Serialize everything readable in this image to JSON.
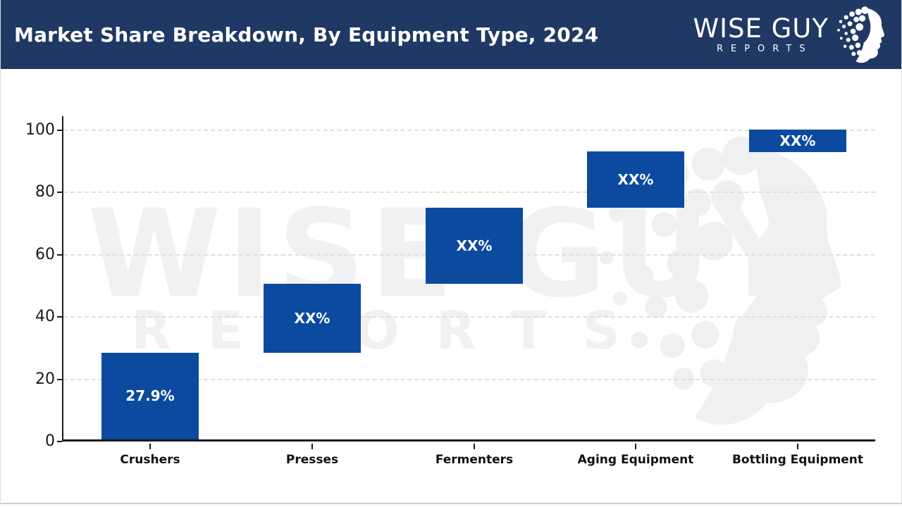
{
  "header": {
    "title": "Market Share Breakdown, By Equipment Type, 2024",
    "bg_color": "#203864",
    "logo": {
      "line1": "WISE GUY",
      "line2": "REPORTS"
    }
  },
  "watermark": {
    "line1": "WISE GUY",
    "line2": "REPORTS"
  },
  "chart_data": {
    "type": "bar",
    "subtype": "waterfall",
    "title": "Market Share Breakdown, By Equipment Type, 2024",
    "categories": [
      "Crushers",
      "Presses",
      "Fermenters",
      "Aging Equipment",
      "Bottling Equipment"
    ],
    "segments": [
      {
        "start": 0,
        "end": 27.9,
        "label": "27.9%"
      },
      {
        "start": 27.9,
        "end": 50.0,
        "label": "XX%"
      },
      {
        "start": 50.0,
        "end": 74.5,
        "label": "XX%"
      },
      {
        "start": 74.5,
        "end": 92.5,
        "label": "XX%"
      },
      {
        "start": 92.4,
        "end": 99.6,
        "label": "XX%"
      }
    ],
    "values_increment": [
      27.9,
      22.1,
      24.5,
      18.0,
      7.2
    ],
    "bar_color": "#0b4a9e",
    "label_color": "#ffffff",
    "xlabel": "",
    "ylabel": "",
    "ylim": [
      0,
      100
    ],
    "yticks": [
      0,
      20,
      40,
      60,
      80,
      100
    ],
    "grid": "horizontal-dashed",
    "legend": "none"
  }
}
